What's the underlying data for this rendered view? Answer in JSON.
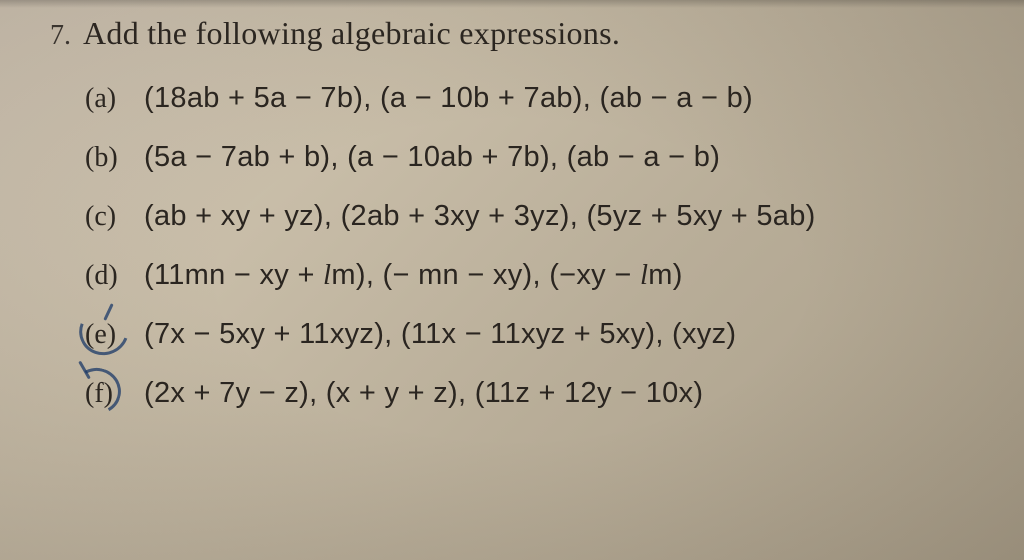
{
  "question": {
    "number": "7.",
    "text": "Add the following algebraic expressions."
  },
  "options": [
    {
      "label": "(a)",
      "expr": "(18ab + 5a − 7b), (a − 10b + 7ab), (ab − a − b)",
      "marked": false
    },
    {
      "label": "(b)",
      "expr": "(5a − 7ab + b), (a − 10ab + 7b), (ab − a − b)",
      "marked": false
    },
    {
      "label": "(c)",
      "expr": "(ab + xy + yz), (2ab + 3xy + 3yz), (5yz + 5xy + 5ab)",
      "marked": false
    },
    {
      "label": "(d)",
      "expr": "(11mn − xy + lm), (− mn − xy), (−xy − lm)",
      "marked": false,
      "has_l": true
    },
    {
      "label": "(e)",
      "expr": "(7x − 5xy + 11xyz), (11x − 11xyz + 5xy), (xyz)",
      "marked": "e"
    },
    {
      "label": "(f)",
      "expr": "(2x + 7y − z), (x + y + z), (11z + 12y − 10x)",
      "marked": "f"
    }
  ],
  "colors": {
    "text": "#2a2520",
    "pen": "#1a3a6b",
    "paper_light": "#d4c9b8",
    "paper_dark": "#a89d88"
  },
  "typography": {
    "question_fontsize": 32,
    "option_fontsize": 29,
    "label_fontsize": 28
  }
}
